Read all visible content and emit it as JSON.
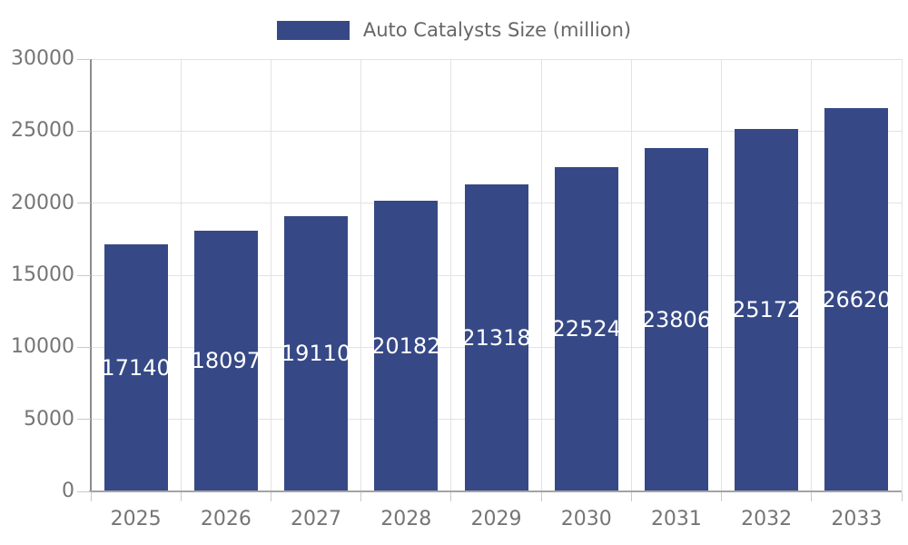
{
  "chart_data": {
    "type": "bar",
    "title": "Auto Catalysts Size (million)",
    "categories": [
      "2025",
      "2026",
      "2027",
      "2028",
      "2029",
      "2030",
      "2031",
      "2032",
      "2033"
    ],
    "values": [
      17140,
      18097,
      19110,
      20182,
      21318,
      22524,
      23806,
      25172,
      26620
    ],
    "xlabel": "",
    "ylabel": "",
    "ylim": [
      0,
      30000
    ],
    "ytick_step": 5000,
    "ytick_labels": [
      "0",
      "5000",
      "10000",
      "15000",
      "20000",
      "25000",
      "30000"
    ],
    "grid": true,
    "legend_position": "top",
    "value_labels_visible": true
  },
  "legend": {
    "label": "Auto Catalysts Size (million)"
  },
  "colors": {
    "bar": "#364986",
    "value_label": "#ffffff",
    "axis_text": "#757575",
    "legend_text": "#666666",
    "gridline": "#e2e2e2",
    "axis_line": "#8c8c8c",
    "baseline": "#a3a3a3",
    "background": "#ffffff"
  }
}
